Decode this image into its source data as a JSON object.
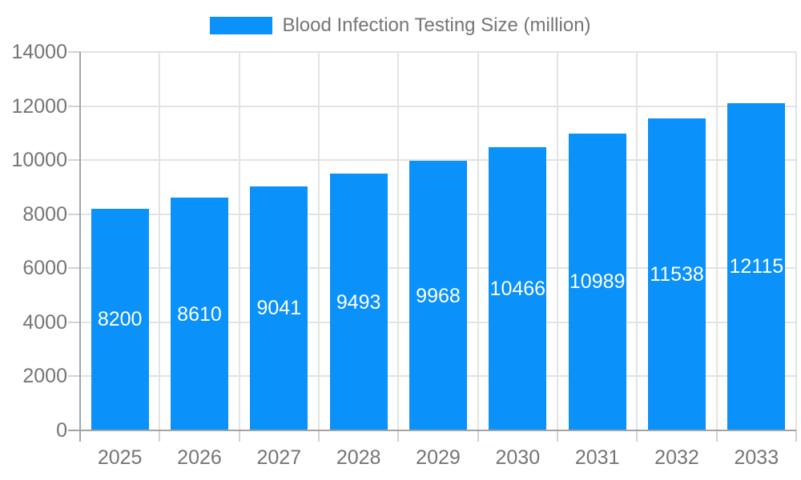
{
  "chart_data": {
    "type": "bar",
    "title": "",
    "categories": [
      "2025",
      "2026",
      "2027",
      "2028",
      "2029",
      "2030",
      "2031",
      "2032",
      "2033"
    ],
    "series": [
      {
        "name": "Blood Infection Testing Size (million)",
        "values": [
          8200,
          8610,
          9041,
          9493,
          9968,
          10466,
          10989,
          11538,
          12115
        ]
      }
    ],
    "xlabel": "",
    "ylabel": "",
    "ylim": [
      0,
      14000
    ],
    "yticks": [
      0,
      2000,
      4000,
      6000,
      8000,
      10000,
      12000,
      14000
    ],
    "grid": "horizontal and vertical light gray gridlines",
    "legend_position": "top-center",
    "bar_label_position": "inside-center"
  },
  "colors": {
    "bar": "#0a91fa",
    "bar_label_text": "#ffffff",
    "axis_line": "#a3a3a3",
    "grid_line": "#e3e3e3",
    "tick_line": "#d2d2d2",
    "tick_text": "#757575",
    "legend_text": "#757575",
    "background": "#ffffff"
  }
}
